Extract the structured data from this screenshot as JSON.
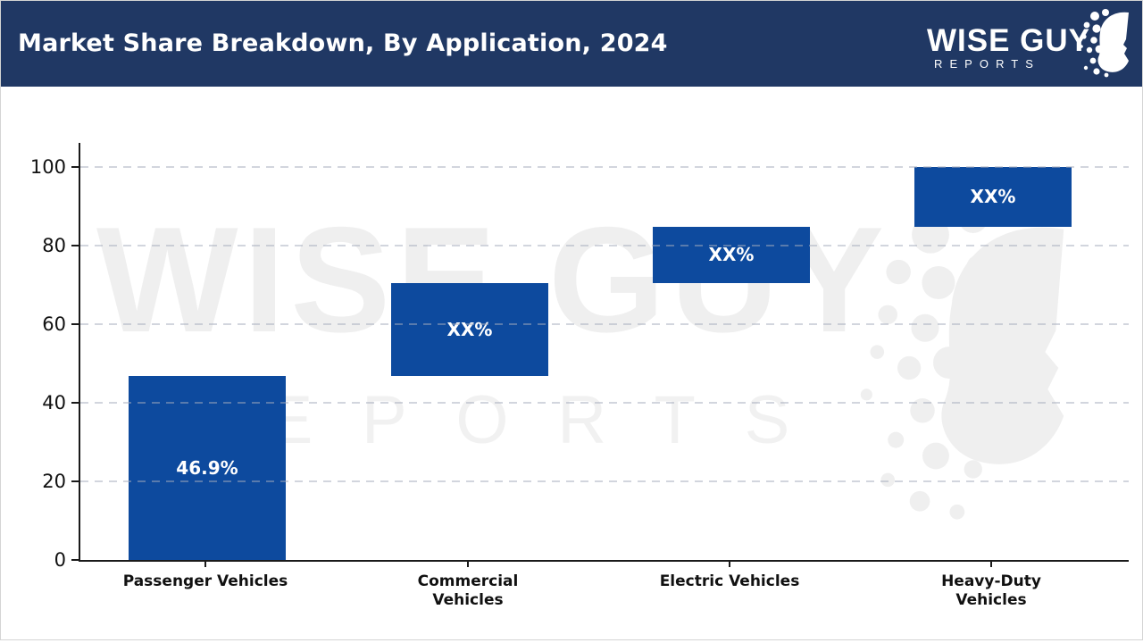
{
  "header": {
    "title": "Market Share Breakdown, By Application, 2024",
    "logo": {
      "name": "WISE GUY",
      "sub": "REPORTS"
    }
  },
  "watermark": {
    "name": "WISE GUY",
    "sub": "REPORTS"
  },
  "colors": {
    "header_bg": "#203864",
    "bar": "#0d4a9e",
    "grid": "#d9d9d9",
    "axis": "#1a1a1a",
    "value_label": "#ffffff",
    "watermark": "#efefef"
  },
  "chart_data": {
    "type": "bar",
    "subtype": "waterfall",
    "title": "Market Share Breakdown, By Application, 2024",
    "xlabel": "",
    "ylabel": "",
    "ylim": [
      0,
      100
    ],
    "yticks": [
      0,
      20,
      40,
      60,
      80,
      100
    ],
    "grid": "horizontal-dashed",
    "legend": "none",
    "categories": [
      "Passenger Vehicles",
      "Commercial\nVehicles",
      "Electric Vehicles",
      "Heavy-Duty\nVehicles"
    ],
    "bars": [
      {
        "category": "Passenger Vehicles",
        "start": 0,
        "end": 46.9,
        "label": "46.9%"
      },
      {
        "category": "Commercial\nVehicles",
        "start": 46.9,
        "end": 70.5,
        "label": "XX%"
      },
      {
        "category": "Electric Vehicles",
        "start": 70.5,
        "end": 84.8,
        "label": "XX%"
      },
      {
        "category": "Heavy-Duty\nVehicles",
        "start": 84.8,
        "end": 100,
        "label": "XX%"
      }
    ]
  }
}
